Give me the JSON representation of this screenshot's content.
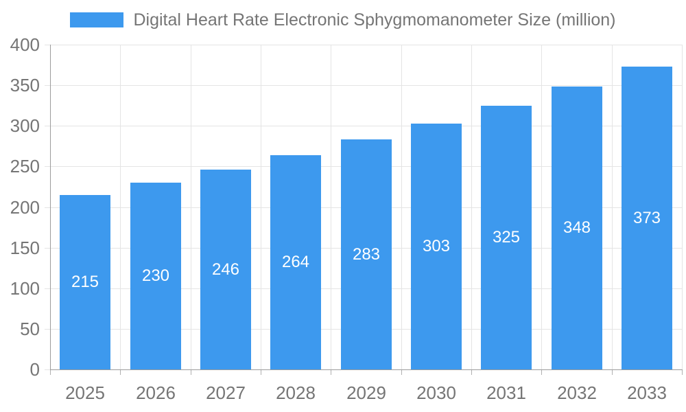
{
  "legend": {
    "label": "Digital Heart Rate Electronic Sphygmomanometer Size (million)"
  },
  "colors": {
    "bar": "#3D99EE",
    "bar_label": "#FFFFFF",
    "text": "#757575",
    "axis_line": "#9B9B9B",
    "grid_line": "#E4E4E4",
    "x_tick": "#B0B0B0",
    "background": "#FFFFFF"
  },
  "chart_data": {
    "type": "bar",
    "title": "",
    "xlabel": "",
    "ylabel": "",
    "categories": [
      "2025",
      "2026",
      "2027",
      "2028",
      "2029",
      "2030",
      "2031",
      "2032",
      "2033"
    ],
    "series": [
      {
        "name": "Digital Heart Rate Electronic Sphygmomanometer Size (million)",
        "values": [
          215,
          230,
          246,
          264,
          283,
          303,
          325,
          348,
          373
        ]
      }
    ],
    "ylim": [
      0,
      400
    ],
    "yticks": [
      0,
      50,
      100,
      150,
      200,
      250,
      300,
      350,
      400
    ],
    "grid": true,
    "value_labels": "inside-center",
    "legend_position": "top-center"
  }
}
